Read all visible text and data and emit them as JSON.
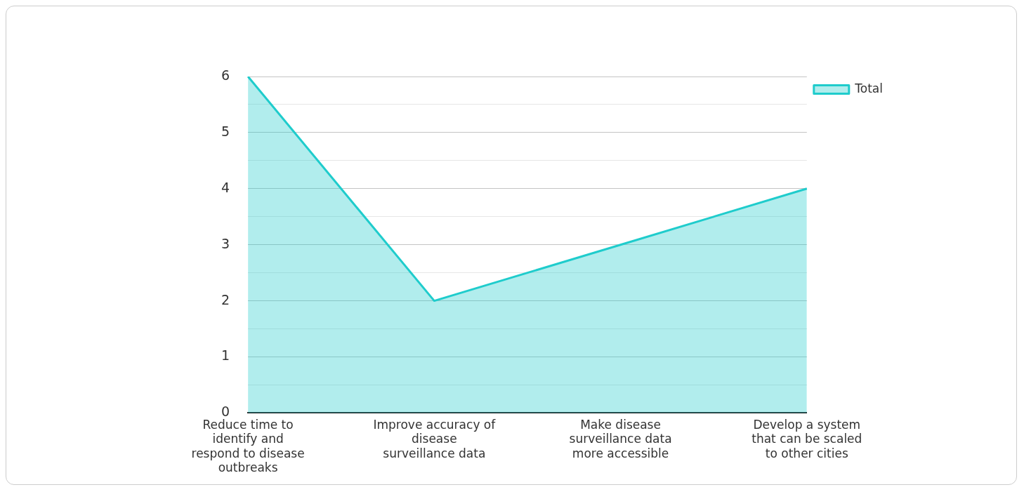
{
  "chart_data": {
    "type": "area",
    "categories": [
      "Reduce time to identify and respond to disease outbreaks",
      "Improve accuracy of disease surveillance data",
      "Make disease surveillance data more accessible",
      "Develop a system that can be scaled to other cities"
    ],
    "series": [
      {
        "name": "Total",
        "color": "#1fcccc",
        "values": [
          6,
          2,
          3,
          4
        ]
      }
    ],
    "ylim": [
      0,
      6
    ],
    "yticks": [
      0,
      {
        "value": 0.5,
        "label": null
      },
      1,
      {
        "value": 1.5,
        "label": null
      },
      2,
      {
        "value": 2.5,
        "label": null
      },
      3,
      {
        "value": 3.5,
        "label": null
      },
      4,
      {
        "value": 4.5,
        "label": null
      },
      5,
      {
        "value": 5.5,
        "label": null
      },
      6
    ],
    "grid": "y",
    "legend": "top right"
  }
}
